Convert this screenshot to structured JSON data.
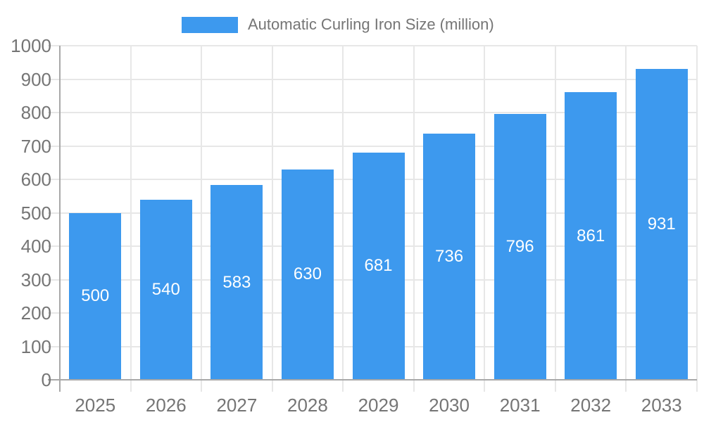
{
  "legend": {
    "label": "Automatic Curling Iron Size (million)"
  },
  "chart_data": {
    "type": "bar",
    "title": "Automatic Curling Iron Size (million)",
    "categories": [
      "2025",
      "2026",
      "2027",
      "2028",
      "2029",
      "2030",
      "2031",
      "2032",
      "2033"
    ],
    "values": [
      500,
      540,
      583,
      630,
      681,
      736,
      796,
      861,
      931
    ],
    "xlabel": "",
    "ylabel": "",
    "ylim": [
      0,
      1000
    ],
    "ytick_step": 100,
    "grid": true,
    "legend_position": "top",
    "colors": {
      "bar": "#3d99ee",
      "bar_label": "#ffffff",
      "axis_text": "#757575",
      "grid": "#e7e7e7",
      "axis_line": "#a8a8a8"
    }
  }
}
